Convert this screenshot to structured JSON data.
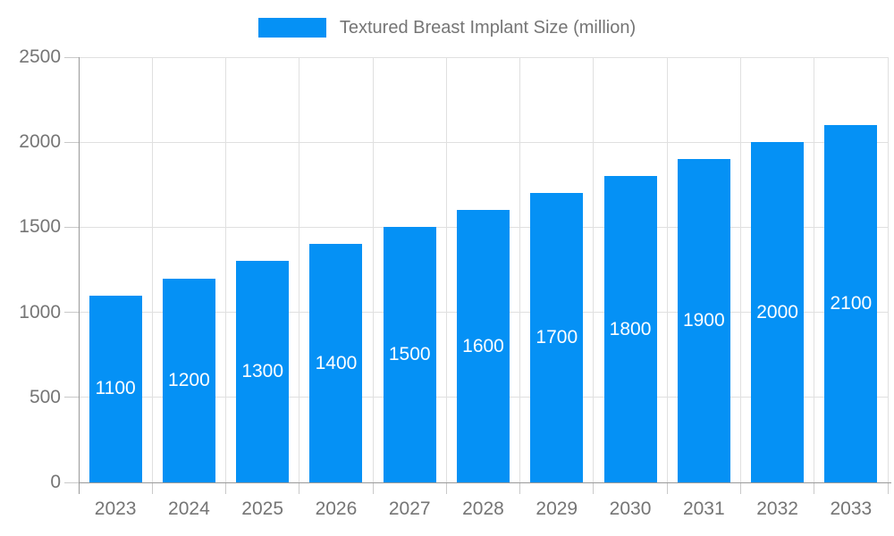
{
  "chart_data": {
    "type": "bar",
    "title": "Textured Breast Implant Size (million)",
    "legend_entries": [
      "Textured Breast Implant Size (million)"
    ],
    "legend_position": "top",
    "categories": [
      "2023",
      "2024",
      "2025",
      "2026",
      "2027",
      "2028",
      "2029",
      "2030",
      "2031",
      "2032",
      "2033"
    ],
    "values": [
      1100,
      1200,
      1300,
      1400,
      1500,
      1600,
      1700,
      1800,
      1900,
      2000,
      2100
    ],
    "value_labels": [
      "1100",
      "1200",
      "1300",
      "1400",
      "1500",
      "1600",
      "1700",
      "1800",
      "1900",
      "2000",
      "2100"
    ],
    "xlabel": "",
    "ylabel": "",
    "ylim": [
      0,
      2500
    ],
    "yticks": [
      0,
      500,
      1000,
      1500,
      2000,
      2500
    ],
    "ytick_labels": [
      "0",
      "500",
      "1000",
      "1500",
      "2000",
      "2500"
    ],
    "grid": true,
    "colors": {
      "bar": "#0591f5",
      "value_label": "#ffffff",
      "axis_label": "#757575",
      "grid_line": "#e0e0e0",
      "tick_line": "#c9c9c9",
      "axis_line": "#999999",
      "background": "#ffffff"
    }
  }
}
